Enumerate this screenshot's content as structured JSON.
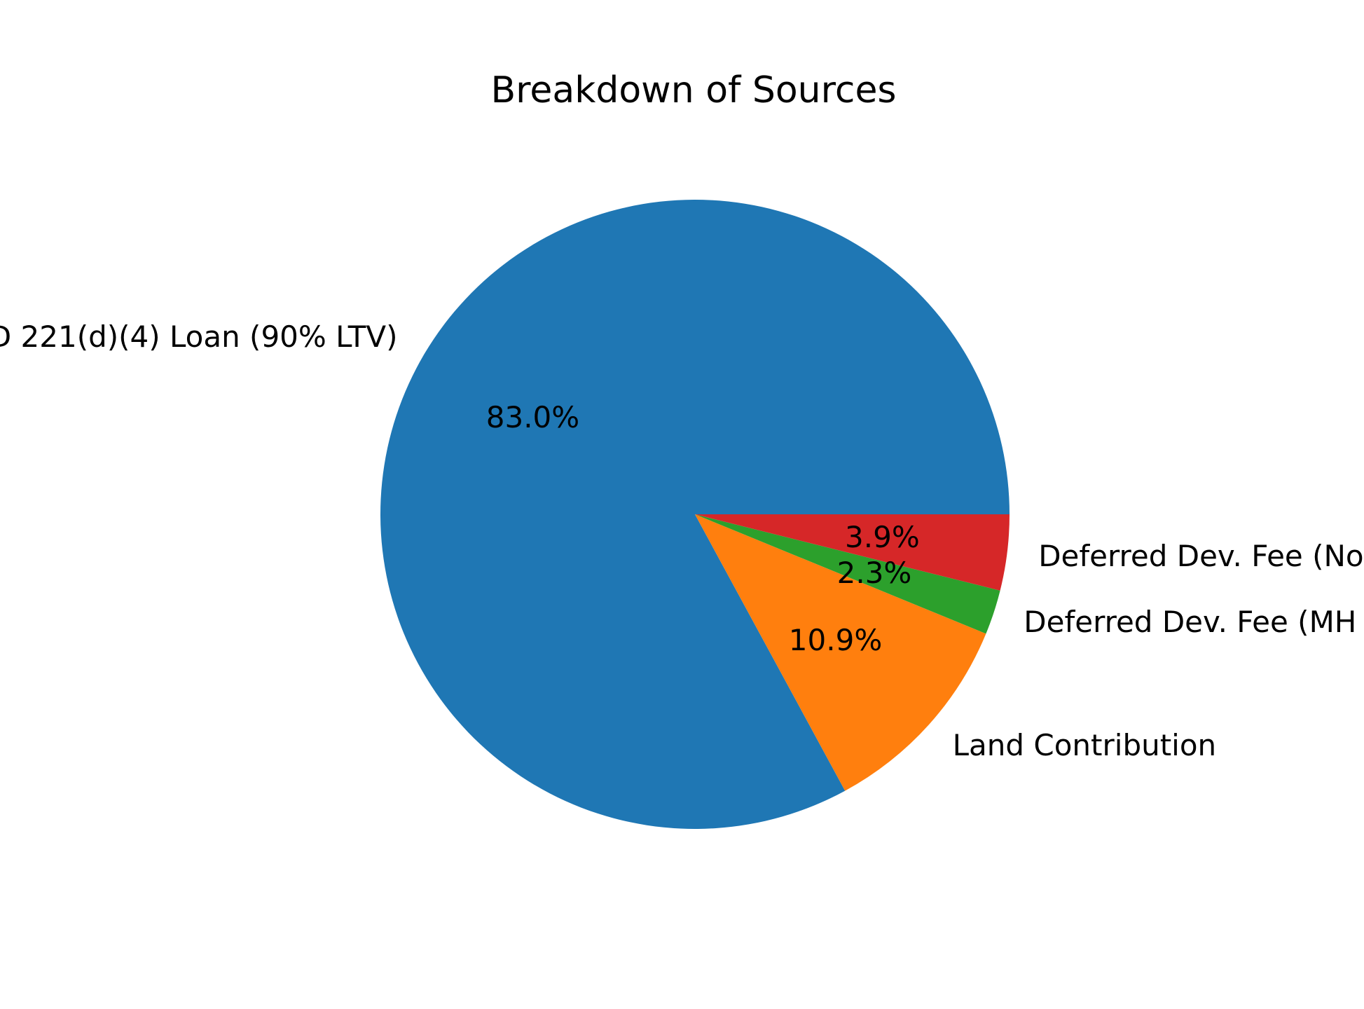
{
  "chart_data": {
    "type": "pie",
    "title": "Breakdown of Sources",
    "slices": [
      {
        "label": "D 221(d)(4) Loan (90% LTV)",
        "value": 83.0,
        "pct_label": "83.0%",
        "color": "#1f77b4"
      },
      {
        "label": "Land Contribution",
        "value": 10.9,
        "pct_label": "10.9%",
        "color": "#ff7f0e"
      },
      {
        "label": "Deferred Dev. Fee (MH",
        "value": 2.3,
        "pct_label": "2.3%",
        "color": "#2ca02c"
      },
      {
        "label": "Deferred Dev. Fee (No",
        "value": 3.9,
        "pct_label": "3.9%",
        "color": "#d62728"
      }
    ],
    "start_angle_deg": 0,
    "direction": "counterclockwise",
    "legend_position": "none",
    "pct_distance": 0.6,
    "label_distance": 1.1,
    "text_color": "#000000",
    "background_color": "#ffffff"
  }
}
